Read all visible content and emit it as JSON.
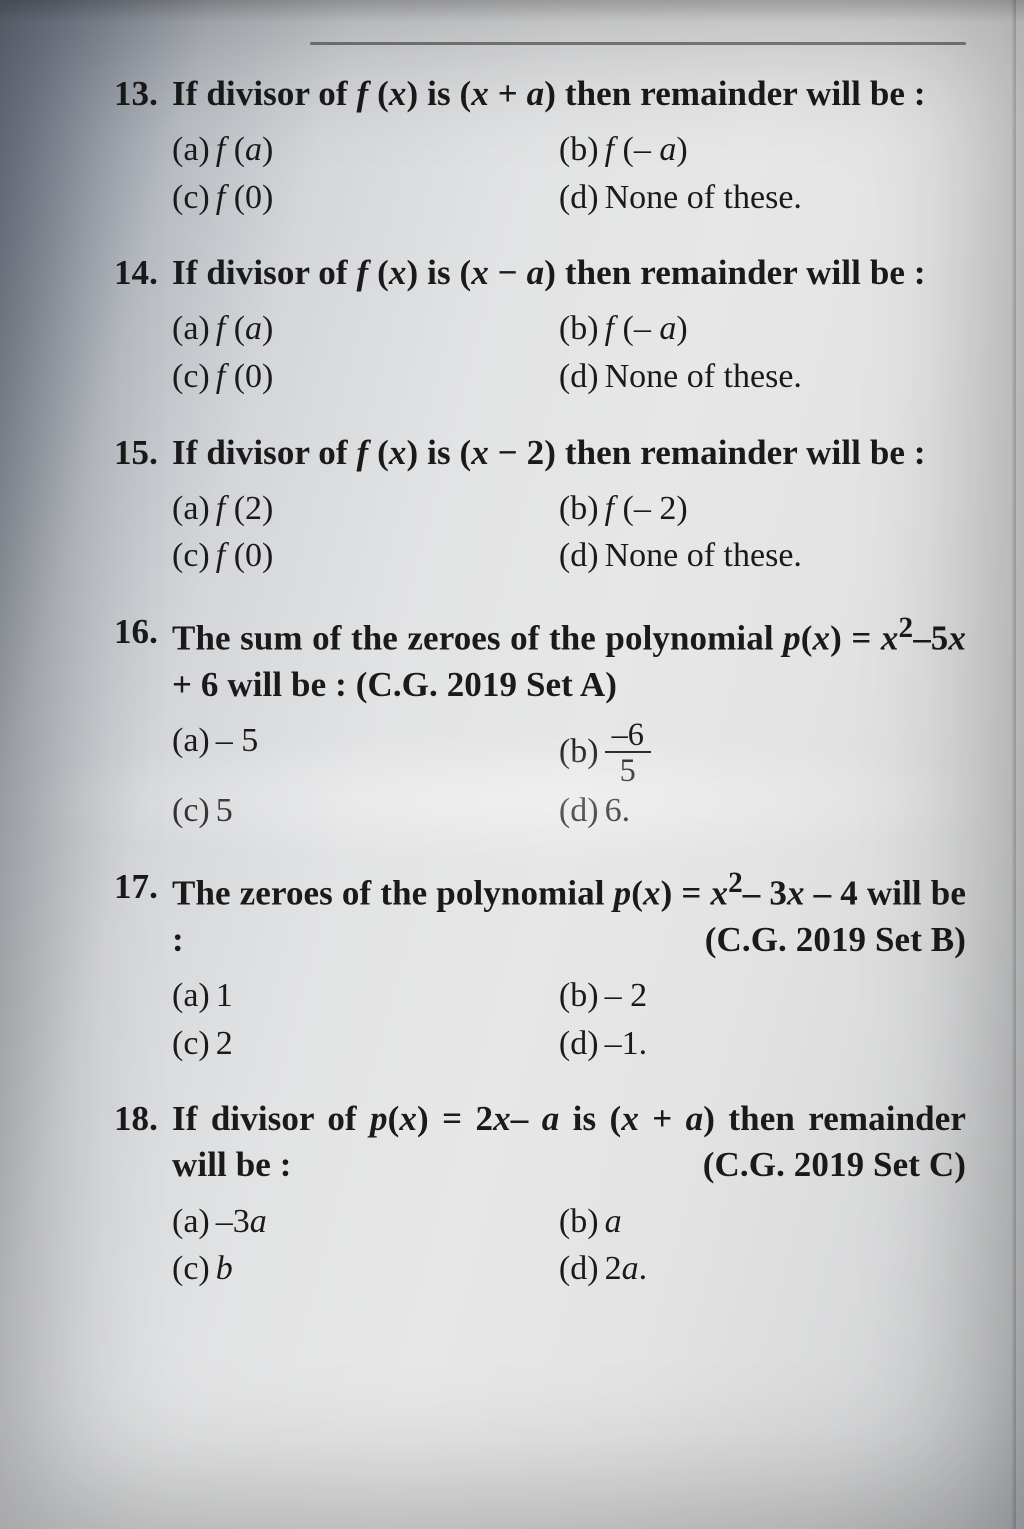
{
  "questions": [
    {
      "number": "13.",
      "stem": "If divisor of <span class=\"ital\">f</span> (<span class=\"ital\">x</span>) is (<span class=\"ital\">x</span> + <span class=\"ital\">a</span>) then remain&shy;der will be :",
      "options": [
        {
          "label": "(a)",
          "text": "<span class=\"ital\">f</span> (<span class=\"ital\">a</span>)"
        },
        {
          "label": "(b)",
          "text": "<span class=\"ital\">f</span> (– <span class=\"ital\">a</span>)"
        },
        {
          "label": "(c)",
          "text": "<span class=\"ital\">f</span> (0)"
        },
        {
          "label": "(d)",
          "text": "None of these."
        }
      ]
    },
    {
      "number": "14.",
      "stem": "If divisor of <span class=\"ital\">f</span> (<span class=\"ital\">x</span>) is (<span class=\"ital\">x</span> − <span class=\"ital\">a</span>) then remain&shy;der will be :",
      "options": [
        {
          "label": "(a)",
          "text": "<span class=\"ital\">f</span> (<span class=\"ital\">a</span>)"
        },
        {
          "label": "(b)",
          "text": "<span class=\"ital\">f</span> (– <span class=\"ital\">a</span>)"
        },
        {
          "label": "(c)",
          "text": "<span class=\"ital\">f</span> (0)"
        },
        {
          "label": "(d)",
          "text": "None of these."
        }
      ]
    },
    {
      "number": "15.",
      "stem": "If divisor of <span class=\"ital\">f</span> (<span class=\"ital\">x</span>) is (<span class=\"ital\">x</span> − 2) then remain&shy;der will be :",
      "options": [
        {
          "label": "(a)",
          "text": "<span class=\"ital\">f</span> (2)"
        },
        {
          "label": "(b)",
          "text": "<span class=\"ital\">f</span> (– 2)"
        },
        {
          "label": "(c)",
          "text": "<span class=\"ital\">f</span> (0)"
        },
        {
          "label": "(d)",
          "text": "None of these."
        }
      ]
    },
    {
      "number": "16.",
      "stem": "The sum of the zeroes of the polynomial <span class=\"ital\">p</span>(<span class=\"ital\">x</span>) = <span class=\"ital\">x</span><sup>2</sup>–5<span class=\"ital\">x</span> + 6 will be : (C.G. 2019 Set A)",
      "options": [
        {
          "label": "(a)",
          "text": "– 5"
        },
        {
          "label": "(b)",
          "text": "<span class=\"frac\"><span class=\"top\">–6</span><span class=\"bot\">5</span></span>"
        },
        {
          "label": "(c)",
          "text": "5"
        },
        {
          "label": "(d)",
          "text": "6."
        }
      ]
    },
    {
      "number": "17.",
      "stem": "The zeroes of the polynomial <span class=\"ital\">p</span>(<span class=\"ital\">x</span>) = <span class=\"ital\">x</span><sup>2</sup>– 3<span class=\"ital\">x</span> – 4 will be : <span style=\"float:right\">(C.G. 2019 Set B)</span>",
      "options": [
        {
          "label": "(a)",
          "text": "1"
        },
        {
          "label": "(b)",
          "text": "– 2"
        },
        {
          "label": "(c)",
          "text": "2"
        },
        {
          "label": "(d)",
          "text": "–1."
        }
      ]
    },
    {
      "number": "18.",
      "stem": "If divisor of <span class=\"ital\">p</span>(<span class=\"ital\">x</span>) = 2<span class=\"ital\">x</span>– <span class=\"ital\">a</span> is (<span class=\"ital\">x</span> + <span class=\"ital\">a</span>) then remainder will be : <span style=\"float:right\">(C.G. 2019 Set C)</span>",
      "options": [
        {
          "label": "(a)",
          "text": "–3<span class=\"ital\">a</span>"
        },
        {
          "label": "(b)",
          "text": "<span class=\"ital\">a</span>"
        },
        {
          "label": "(c)",
          "text": "<span class=\"ital\">b</span>"
        },
        {
          "label": "(d)",
          "text": "2<span class=\"ital\">a</span>."
        }
      ]
    }
  ]
}
